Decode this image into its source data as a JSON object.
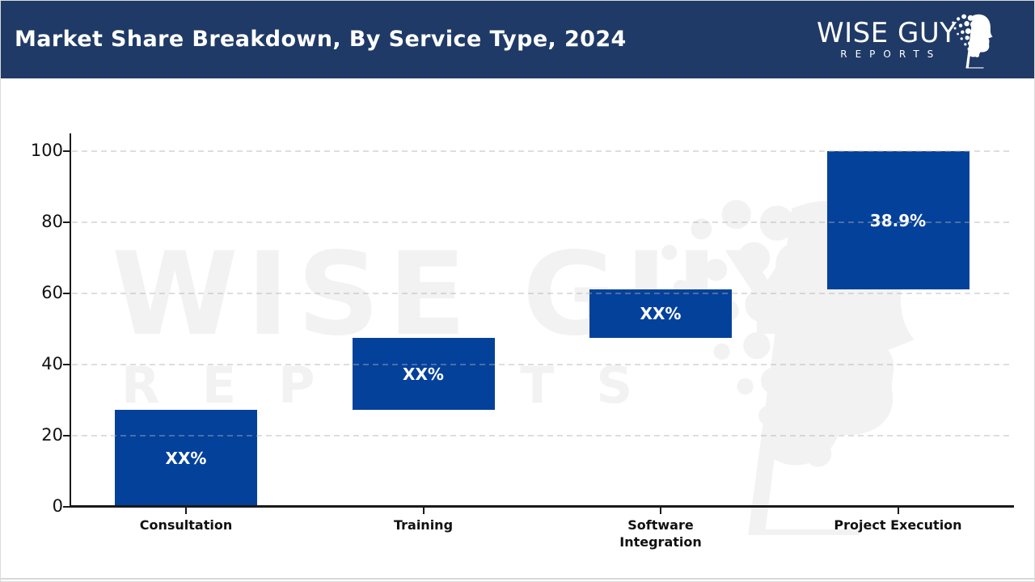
{
  "header": {
    "title": "Market Share Breakdown, By Service Type, 2024",
    "background_color": "#1f3a66",
    "title_color": "#ffffff"
  },
  "logo": {
    "line1": "WISE GUY",
    "line2": "REPORTS"
  },
  "watermark": {
    "line1": "WISE GUY",
    "line2": "REPORTS"
  },
  "chart_data": {
    "type": "bar",
    "subtype": "floating-waterfall",
    "title": "Market Share Breakdown, By Service Type, 2024",
    "categories": [
      "Consultation",
      "Training",
      "Software\nIntegration",
      "Project Execution"
    ],
    "bars": [
      {
        "category": "Consultation",
        "start": 0,
        "end": 27.2,
        "value_label": "XX%"
      },
      {
        "category": "Training",
        "start": 27.2,
        "end": 47.5,
        "value_label": "XX%"
      },
      {
        "category": "Software Integration",
        "start": 47.5,
        "end": 61.1,
        "value_label": "XX%"
      },
      {
        "category": "Project Execution",
        "start": 61.1,
        "end": 100,
        "value_label": "38.9%",
        "value": 38.9
      }
    ],
    "xlabel": "",
    "ylabel": "",
    "ylim": [
      0,
      100
    ],
    "yticks": [
      0,
      20,
      40,
      60,
      80,
      100
    ],
    "grid": "horizontal-dashed",
    "legend": "none",
    "bar_color": "#04419b",
    "bar_label_color": "#ffffff",
    "axis_color": "#1a1a1a"
  }
}
